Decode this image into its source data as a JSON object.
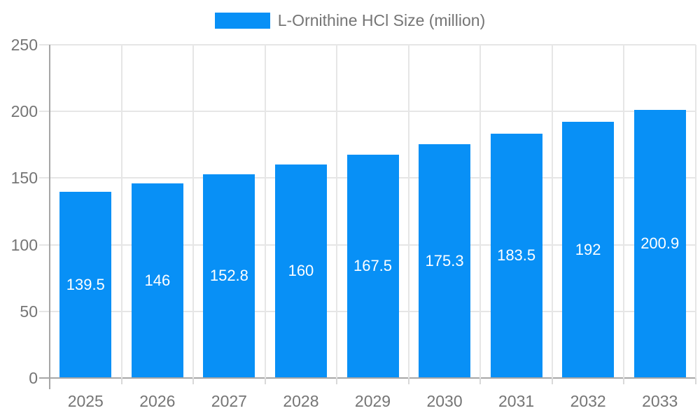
{
  "chart_data": {
    "type": "bar",
    "title": "",
    "legend": {
      "label": "L-Ornithine HCl Size (million)",
      "position": "top-center"
    },
    "categories": [
      "2025",
      "2026",
      "2027",
      "2028",
      "2029",
      "2030",
      "2031",
      "2032",
      "2033"
    ],
    "series": [
      {
        "name": "L-Ornithine HCl Size (million)",
        "values": [
          139.5,
          146,
          152.8,
          160,
          167.5,
          175.3,
          183.5,
          192,
          200.9
        ]
      }
    ],
    "value_labels": "inside-center",
    "xlabel": "",
    "ylabel": "",
    "ylim": [
      0,
      250
    ],
    "yticks": [
      0,
      50,
      100,
      150,
      200,
      250
    ],
    "grid": "horizontal-and-vertical",
    "colors": {
      "bar": "#0890f6",
      "axis": "#a6a6a6",
      "gridline": "#e6e6e6",
      "tick": "#d9d9d9",
      "axis_label": "#757575",
      "value_label": "#ffffff",
      "background": "#ffffff"
    }
  }
}
